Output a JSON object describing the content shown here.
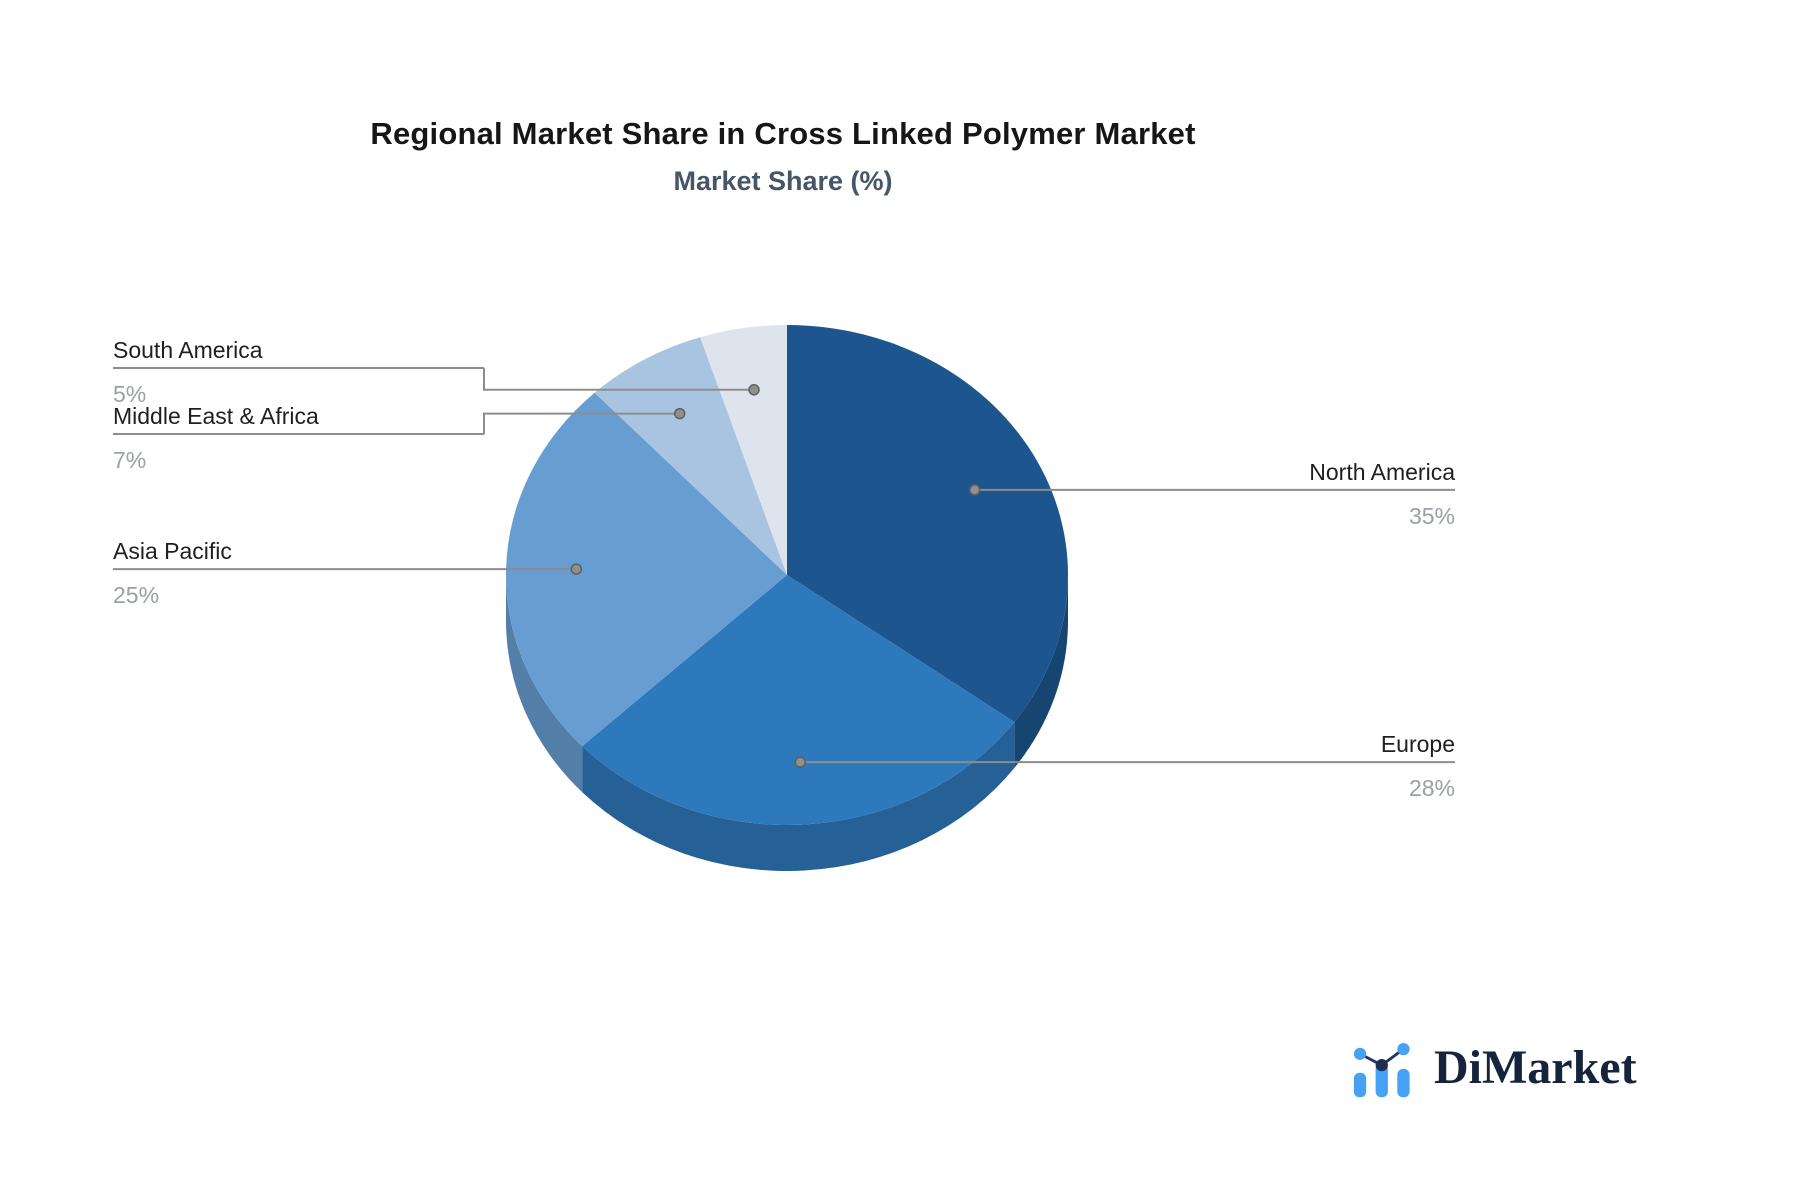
{
  "title": "Regional Market Share in Cross Linked Polymer Market",
  "subtitle": "Market Share (%)",
  "chart_data": {
    "type": "pie",
    "style": "3d",
    "title": "Regional Market Share in Cross Linked Polymer Market",
    "subtitle": "Market Share (%)",
    "unit": "%",
    "start_angle": "12 o'clock",
    "direction": "clockwise",
    "labels": [
      "North America",
      "Europe",
      "Asia Pacific",
      "Middle East & Africa",
      "South America"
    ],
    "values": [
      35,
      28,
      25,
      7,
      5
    ],
    "colors": [
      "#1d568f",
      "#2e78bc",
      "#689dd2",
      "#a9c4e1",
      "#dde4ed"
    ],
    "legend_position": "callout-labels"
  },
  "callouts": [
    {
      "name": "North America",
      "pct": "35%"
    },
    {
      "name": "Europe",
      "pct": "28%"
    },
    {
      "name": "Asia Pacific",
      "pct": "25%"
    },
    {
      "name": "Middle East & Africa",
      "pct": "7%"
    },
    {
      "name": "South America",
      "pct": "5%"
    }
  ],
  "brand": {
    "name": "DiMarket"
  }
}
